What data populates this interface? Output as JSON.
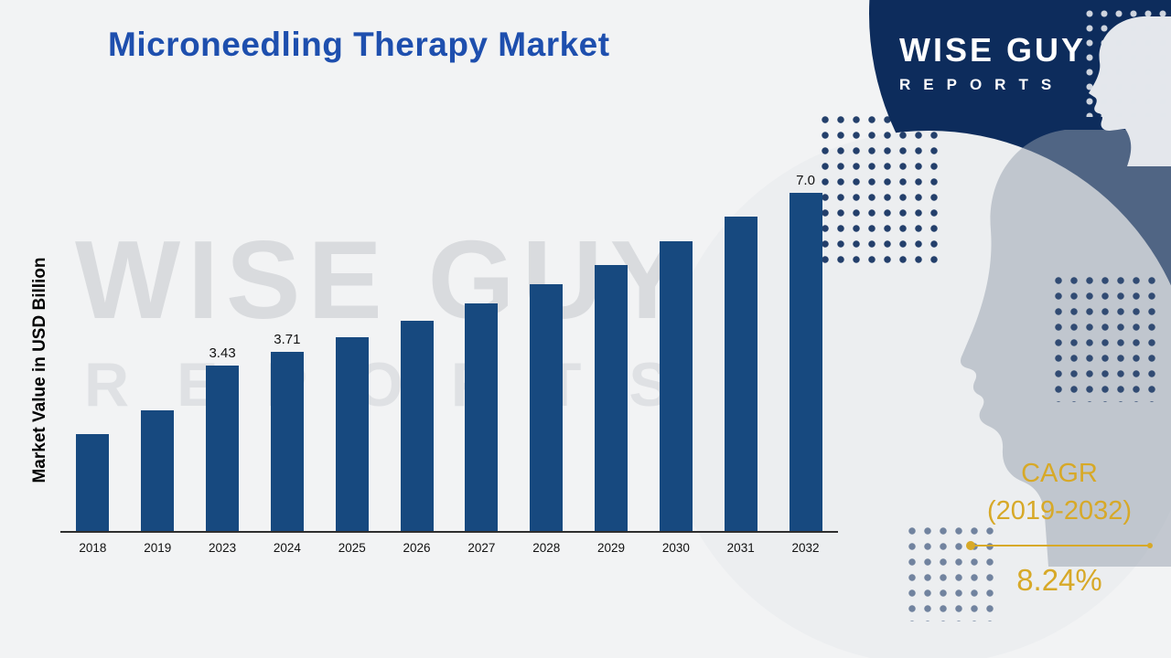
{
  "header": {
    "title": "Microneedling Therapy Market"
  },
  "brand": {
    "name_line1": "WISE GUY",
    "name_line2": "REPORTS"
  },
  "watermark": {
    "line1": "WISE GUY",
    "line2": "REPORTS"
  },
  "cagr": {
    "label": "CAGR",
    "period": "(2019-2032)",
    "value": "8.24%"
  },
  "chart_data": {
    "type": "bar",
    "title": "Microneedling Therapy Market",
    "xlabel": "",
    "ylabel": "Market Value in USD Billion",
    "categories": [
      "2018",
      "2019",
      "2023",
      "2024",
      "2025",
      "2026",
      "2027",
      "2028",
      "2029",
      "2030",
      "2031",
      "2032"
    ],
    "values": [
      2.0,
      2.5,
      3.43,
      3.71,
      4.0,
      4.35,
      4.7,
      5.1,
      5.5,
      6.0,
      6.5,
      7.0
    ],
    "bar_labels": [
      "",
      "",
      "3.43",
      "3.71",
      "",
      "",
      "",
      "",
      "",
      "",
      "",
      "7.0"
    ],
    "ylim": [
      0,
      8
    ],
    "grid": false,
    "legend_position": "none",
    "bar_color": "#17497f"
  },
  "colors": {
    "page_bg": "#f2f3f4",
    "title_blue": "#1e4fae",
    "panel_navy": "#0d2c5c",
    "accent_gold": "#d7a928",
    "watermark_gray": "#d9dbde",
    "bar_blue": "#17497f"
  }
}
